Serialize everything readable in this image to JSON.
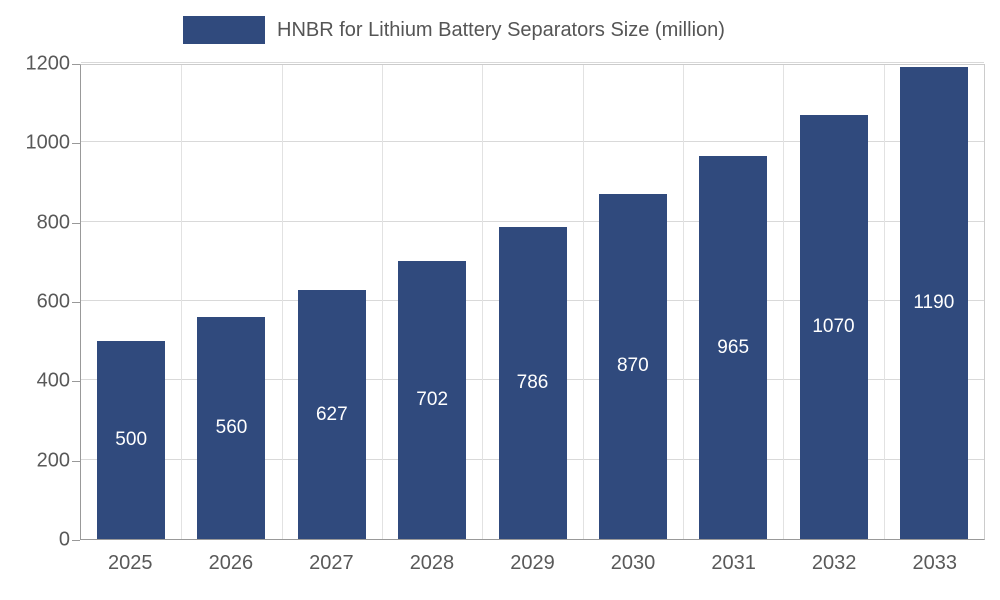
{
  "legend": {
    "title": "HNBR for Lithium Battery Separators Size (million)"
  },
  "chart_data": {
    "type": "bar",
    "title": "HNBR for Lithium Battery Separators Size (million)",
    "categories": [
      "2025",
      "2026",
      "2027",
      "2028",
      "2029",
      "2030",
      "2031",
      "2032",
      "2033"
    ],
    "values": [
      500,
      560,
      627,
      702,
      786,
      870,
      965,
      1070,
      1190
    ],
    "xlabel": "",
    "ylabel": "",
    "ylim": [
      0,
      1200
    ],
    "ytick_step": 200,
    "yticks": [
      0,
      200,
      400,
      600,
      800,
      1000,
      1200
    ],
    "grid": true,
    "legend_position": "top",
    "bar_color": "#304a7d",
    "value_label_color": "#ffffff",
    "axis_label_color": "#595959",
    "gridline_color": "#d9d9d9"
  }
}
